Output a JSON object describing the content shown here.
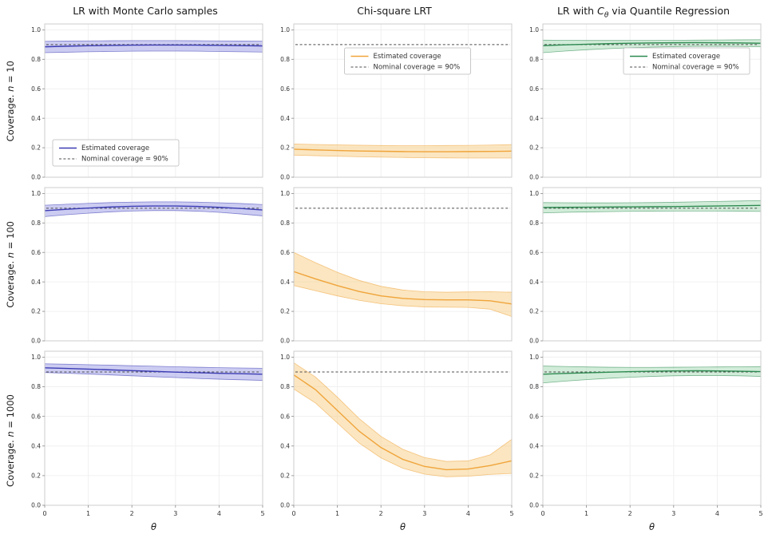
{
  "figure": {
    "columns": [
      {
        "title_pre": "LR with Monte Carlo samples",
        "title_math": "",
        "title_sub": "",
        "title_post": "",
        "line_color": "#3c3cb4",
        "band_color": "#9a9ae6"
      },
      {
        "title_pre": "Chi-square LRT",
        "title_math": "",
        "title_sub": "",
        "title_post": "",
        "line_color": "#f0a43a",
        "band_color": "#f8cd84"
      },
      {
        "title_pre": "LR with ",
        "title_math": "C",
        "title_sub": "θ",
        "title_post": " via Quantile Regression",
        "line_color": "#2d8a50",
        "band_color": "#a3dab3"
      }
    ],
    "rows": [
      {
        "label_pre": "Coverage. ",
        "label_math": "n",
        "label_post": " = 10"
      },
      {
        "label_pre": "Coverage. ",
        "label_math": "n",
        "label_post": " = 100"
      },
      {
        "label_pre": "Coverage. ",
        "label_math": "n",
        "label_post": " = 1000"
      }
    ],
    "legend_labels": {
      "estimated": "Estimated coverage",
      "nominal": "Nominal coverage = 90%"
    },
    "axes": {
      "xlabel": "θ",
      "xticks": [
        0,
        1,
        2,
        3,
        4,
        5
      ],
      "xticklabels": [
        "0",
        "1",
        "2",
        "3",
        "4",
        "5"
      ],
      "yticks": [
        0,
        0.2,
        0.4,
        0.6,
        0.8,
        1.0
      ],
      "yticklabels": [
        "0.0",
        "0.2",
        "0.4",
        "0.6",
        "0.8",
        "1.0"
      ]
    },
    "nominal_value": 0.9,
    "nominal_color": "#4d4d4d"
  },
  "chart_data": [
    {
      "type": "line",
      "row": 0,
      "col": 0,
      "title": "LR with Monte Carlo samples",
      "ylabel": "Coverage. n = 10",
      "xlabel": "θ",
      "xlim": [
        0,
        5
      ],
      "ylim": [
        0,
        1
      ],
      "nominal": 0.9,
      "x": [
        0,
        0.5,
        1,
        1.5,
        2,
        2.5,
        3,
        3.5,
        4,
        4.5,
        5
      ],
      "mean": [
        0.885,
        0.889,
        0.892,
        0.894,
        0.896,
        0.897,
        0.897,
        0.896,
        0.895,
        0.893,
        0.891
      ],
      "upper": [
        0.922,
        0.924,
        0.925,
        0.926,
        0.927,
        0.927,
        0.927,
        0.926,
        0.925,
        0.924,
        0.923
      ],
      "lower": [
        0.845,
        0.848,
        0.851,
        0.853,
        0.855,
        0.856,
        0.856,
        0.855,
        0.853,
        0.851,
        0.849
      ],
      "legend_position": "lower-left",
      "legend_entries": [
        "Estimated coverage",
        "Nominal coverage = 90%"
      ]
    },
    {
      "type": "line",
      "row": 0,
      "col": 1,
      "title": "Chi-square LRT",
      "ylabel": "Coverage. n = 10",
      "xlabel": "θ",
      "xlim": [
        0,
        5
      ],
      "ylim": [
        0,
        1
      ],
      "nominal": 0.9,
      "x": [
        0,
        0.5,
        1,
        1.5,
        2,
        2.5,
        3,
        3.5,
        4,
        4.5,
        5
      ],
      "mean": [
        0.19,
        0.185,
        0.181,
        0.178,
        0.176,
        0.174,
        0.173,
        0.173,
        0.174,
        0.175,
        0.177
      ],
      "upper": [
        0.225,
        0.222,
        0.219,
        0.217,
        0.215,
        0.214,
        0.214,
        0.215,
        0.216,
        0.218,
        0.221
      ],
      "lower": [
        0.15,
        0.146,
        0.142,
        0.139,
        0.136,
        0.134,
        0.132,
        0.131,
        0.13,
        0.13,
        0.13
      ],
      "legend_position": "upper-center",
      "legend_entries": [
        "Estimated coverage",
        "Nominal coverage = 90%"
      ]
    },
    {
      "type": "line",
      "row": 0,
      "col": 2,
      "title": "LR with Cθ via Quantile Regression",
      "ylabel": "Coverage. n = 10",
      "xlabel": "θ",
      "xlim": [
        0,
        5
      ],
      "ylim": [
        0,
        1
      ],
      "nominal": 0.9,
      "x": [
        0,
        0.5,
        1,
        1.5,
        2,
        2.5,
        3,
        3.5,
        4,
        4.5,
        5
      ],
      "mean": [
        0.893,
        0.898,
        0.902,
        0.906,
        0.909,
        0.911,
        0.912,
        0.913,
        0.912,
        0.911,
        0.909
      ],
      "upper": [
        0.93,
        0.929,
        0.928,
        0.928,
        0.928,
        0.928,
        0.929,
        0.93,
        0.931,
        0.932,
        0.933
      ],
      "lower": [
        0.845,
        0.856,
        0.865,
        0.872,
        0.878,
        0.883,
        0.886,
        0.888,
        0.888,
        0.887,
        0.885
      ],
      "legend_position": "upper-right",
      "legend_entries": [
        "Estimated coverage",
        "Nominal coverage = 90%"
      ]
    },
    {
      "type": "line",
      "row": 1,
      "col": 0,
      "title": "LR with Monte Carlo samples",
      "ylabel": "Coverage. n = 100",
      "xlabel": "θ",
      "xlim": [
        0,
        5
      ],
      "ylim": [
        0,
        1
      ],
      "nominal": 0.9,
      "x": [
        0,
        0.5,
        1,
        1.5,
        2,
        2.5,
        3,
        3.5,
        4,
        4.5,
        5
      ],
      "mean": [
        0.883,
        0.893,
        0.901,
        0.908,
        0.913,
        0.915,
        0.915,
        0.912,
        0.906,
        0.898,
        0.888
      ],
      "upper": [
        0.92,
        0.927,
        0.933,
        0.938,
        0.941,
        0.943,
        0.943,
        0.941,
        0.937,
        0.932,
        0.925
      ],
      "lower": [
        0.843,
        0.856,
        0.866,
        0.875,
        0.881,
        0.884,
        0.884,
        0.88,
        0.872,
        0.861,
        0.848
      ],
      "legend_position": null,
      "legend_entries": []
    },
    {
      "type": "line",
      "row": 1,
      "col": 1,
      "title": "Chi-square LRT",
      "ylabel": "Coverage. n = 100",
      "xlabel": "θ",
      "xlim": [
        0,
        5
      ],
      "ylim": [
        0,
        1
      ],
      "nominal": 0.9,
      "x": [
        0,
        0.5,
        1,
        1.5,
        2,
        2.5,
        3,
        3.5,
        4,
        4.5,
        5
      ],
      "mean": [
        0.47,
        0.42,
        0.375,
        0.335,
        0.305,
        0.288,
        0.28,
        0.278,
        0.278,
        0.272,
        0.25
      ],
      "upper": [
        0.6,
        0.53,
        0.465,
        0.41,
        0.37,
        0.345,
        0.333,
        0.33,
        0.332,
        0.333,
        0.33
      ],
      "lower": [
        0.375,
        0.34,
        0.305,
        0.275,
        0.252,
        0.238,
        0.23,
        0.228,
        0.227,
        0.215,
        0.165
      ],
      "legend_position": null,
      "legend_entries": []
    },
    {
      "type": "line",
      "row": 1,
      "col": 2,
      "title": "LR with Cθ via Quantile Regression",
      "ylabel": "Coverage. n = 100",
      "xlabel": "θ",
      "xlim": [
        0,
        5
      ],
      "ylim": [
        0,
        1
      ],
      "nominal": 0.9,
      "x": [
        0,
        0.5,
        1,
        1.5,
        2,
        2.5,
        3,
        3.5,
        4,
        4.5,
        5
      ],
      "mean": [
        0.905,
        0.906,
        0.907,
        0.908,
        0.909,
        0.91,
        0.911,
        0.913,
        0.915,
        0.917,
        0.919
      ],
      "upper": [
        0.938,
        0.937,
        0.936,
        0.936,
        0.937,
        0.938,
        0.94,
        0.943,
        0.946,
        0.949,
        0.952
      ],
      "lower": [
        0.868,
        0.872,
        0.875,
        0.877,
        0.879,
        0.88,
        0.881,
        0.881,
        0.881,
        0.88,
        0.878
      ],
      "legend_position": null,
      "legend_entries": []
    },
    {
      "type": "line",
      "row": 2,
      "col": 0,
      "title": "LR with Monte Carlo samples",
      "ylabel": "Coverage. n = 1000",
      "xlabel": "θ",
      "xlim": [
        0,
        5
      ],
      "ylim": [
        0,
        1
      ],
      "nominal": 0.9,
      "x": [
        0,
        0.5,
        1,
        1.5,
        2,
        2.5,
        3,
        3.5,
        4,
        4.5,
        5
      ],
      "mean": [
        0.928,
        0.924,
        0.919,
        0.914,
        0.909,
        0.904,
        0.899,
        0.895,
        0.891,
        0.888,
        0.885
      ],
      "upper": [
        0.955,
        0.952,
        0.949,
        0.946,
        0.942,
        0.939,
        0.935,
        0.932,
        0.929,
        0.927,
        0.925
      ],
      "lower": [
        0.896,
        0.891,
        0.886,
        0.88,
        0.874,
        0.868,
        0.862,
        0.856,
        0.851,
        0.847,
        0.843
      ],
      "legend_position": null,
      "legend_entries": []
    },
    {
      "type": "line",
      "row": 2,
      "col": 1,
      "title": "Chi-square LRT",
      "ylabel": "Coverage. n = 1000",
      "xlabel": "θ",
      "xlim": [
        0,
        5
      ],
      "ylim": [
        0,
        1
      ],
      "nominal": 0.9,
      "x": [
        0,
        0.5,
        1,
        1.5,
        2,
        2.5,
        3,
        3.5,
        4,
        4.5,
        5
      ],
      "mean": [
        0.88,
        0.78,
        0.64,
        0.5,
        0.39,
        0.31,
        0.262,
        0.24,
        0.245,
        0.268,
        0.3
      ],
      "upper": [
        0.962,
        0.865,
        0.73,
        0.585,
        0.465,
        0.378,
        0.322,
        0.296,
        0.3,
        0.34,
        0.445
      ],
      "lower": [
        0.785,
        0.69,
        0.555,
        0.42,
        0.32,
        0.25,
        0.21,
        0.192,
        0.196,
        0.208,
        0.215
      ],
      "legend_position": null,
      "legend_entries": []
    },
    {
      "type": "line",
      "row": 2,
      "col": 2,
      "title": "LR with Cθ via Quantile Regression",
      "ylabel": "Coverage. n = 1000",
      "xlabel": "θ",
      "xlim": [
        0,
        5
      ],
      "ylim": [
        0,
        1
      ],
      "nominal": 0.9,
      "x": [
        0,
        0.5,
        1,
        1.5,
        2,
        2.5,
        3,
        3.5,
        4,
        4.5,
        5
      ],
      "mean": [
        0.885,
        0.89,
        0.894,
        0.898,
        0.902,
        0.905,
        0.907,
        0.908,
        0.907,
        0.905,
        0.902
      ],
      "upper": [
        0.94,
        0.937,
        0.934,
        0.932,
        0.931,
        0.931,
        0.932,
        0.933,
        0.934,
        0.935,
        0.936
      ],
      "lower": [
        0.826,
        0.838,
        0.848,
        0.857,
        0.864,
        0.87,
        0.874,
        0.876,
        0.876,
        0.874,
        0.87
      ],
      "legend_position": null,
      "legend_entries": []
    }
  ]
}
